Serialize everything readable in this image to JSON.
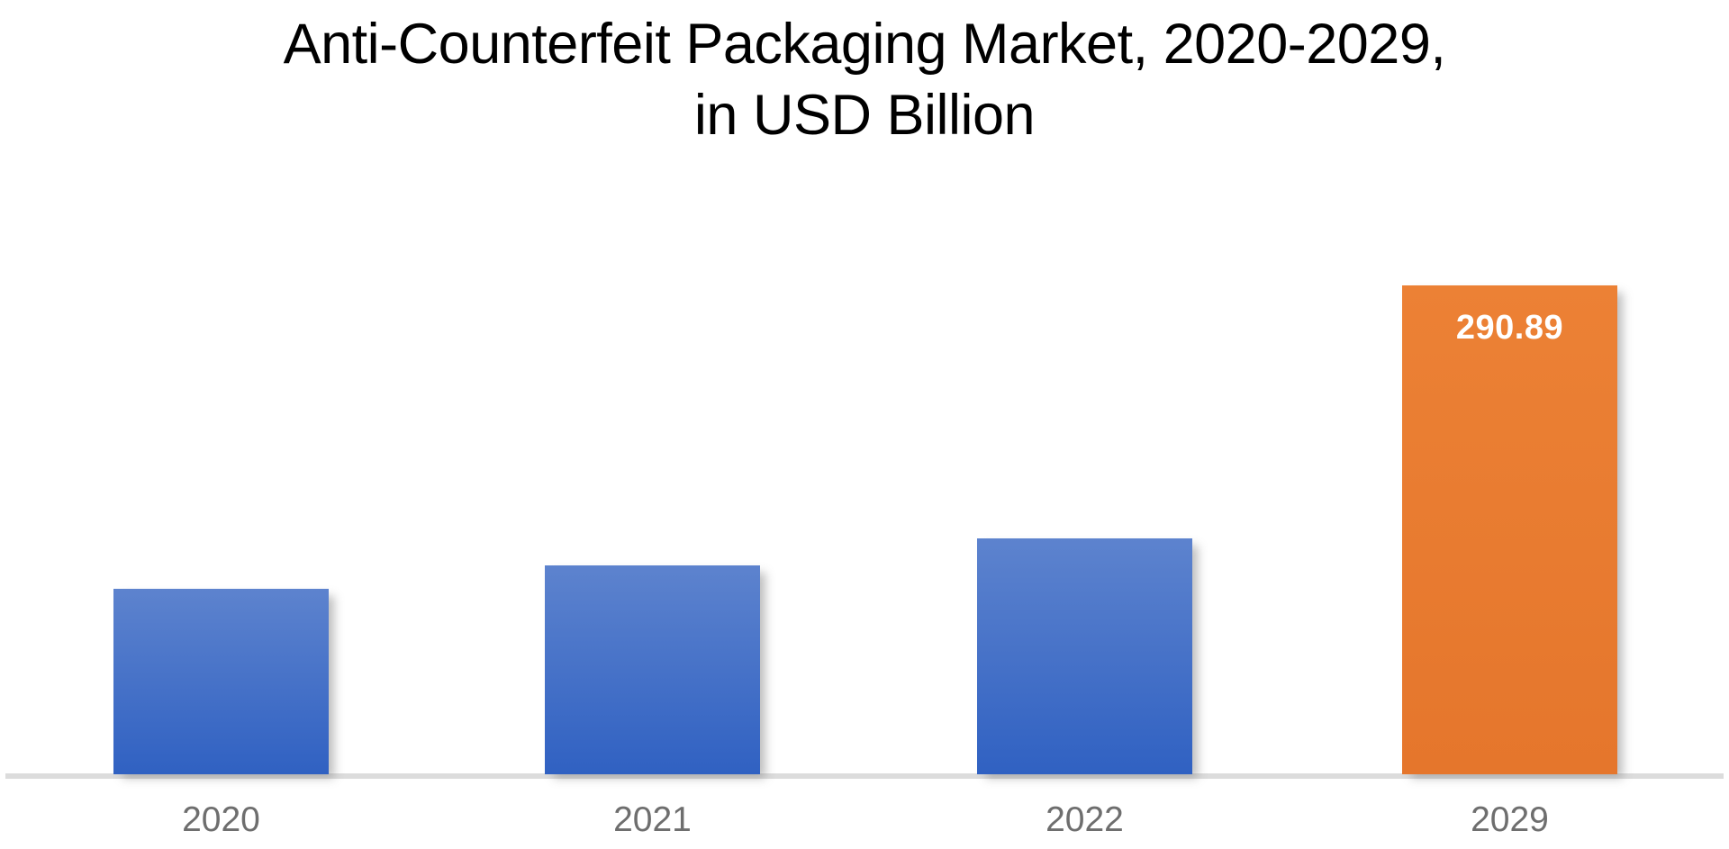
{
  "page": {
    "background": "#ffffff"
  },
  "chart_data": {
    "type": "bar",
    "title": "Anti-Counterfeit Packaging Market, 2020-2029, in USD Billion",
    "title_lines": [
      "Anti-Counterfeit Packaging Market, 2020-2029,",
      "in USD Billion"
    ],
    "categories": [
      "2020",
      "2021",
      "2022",
      "2029"
    ],
    "values": [
      110.6,
      124.5,
      140.1,
      290.89
    ],
    "data_labels": [
      "",
      "",
      "",
      "290.89"
    ],
    "unit": "USD Billion",
    "highlight_index": 3,
    "ylim": [
      0,
      300
    ],
    "y_axis_visible": false,
    "x_axis_line_visible": true,
    "gridlines": false,
    "legend": "none",
    "colors": {
      "bar_gradient_top": "#5d83ce",
      "bar_gradient_bottom": "#3061c2",
      "highlight_gradient_top": "#ec8135",
      "highlight_gradient_bottom": "#e5762c",
      "data_label": "#ffffff",
      "tick_label": "#6e6e6e",
      "axis_line": "#dcdcdc",
      "title": "#000000"
    }
  }
}
